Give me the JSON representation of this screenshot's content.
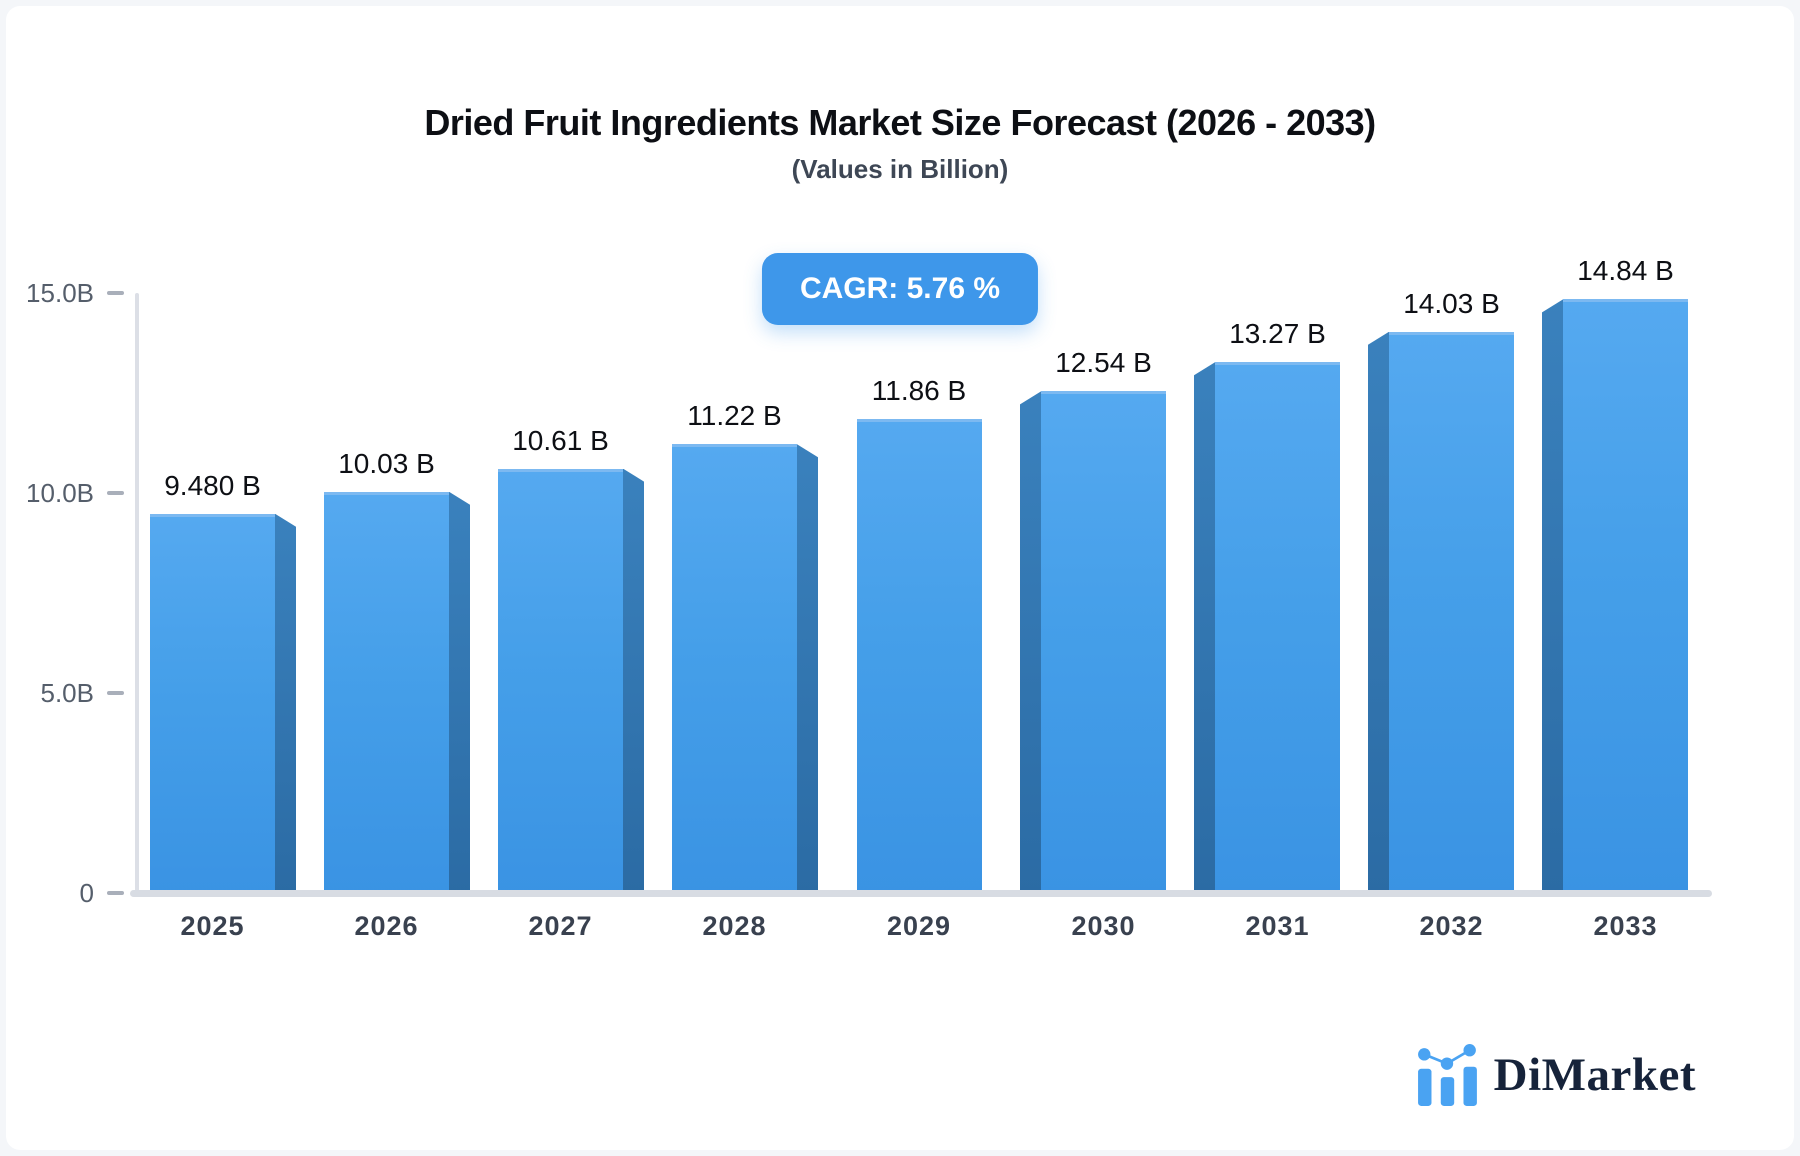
{
  "header": {
    "title": "Dried Fruit Ingredients Market Size Forecast (2026 - 2033)",
    "subtitle": "(Values in Billion)",
    "cagr_badge": "CAGR: 5.76 %"
  },
  "chart_data": {
    "type": "bar",
    "title": "Dried Fruit Ingredients Market Size Forecast (2026 - 2033)",
    "subtitle": "(Values in Billion)",
    "xlabel": "",
    "ylabel": "",
    "unit": "Billion",
    "categories": [
      "2025",
      "2026",
      "2027",
      "2028",
      "2029",
      "2030",
      "2031",
      "2032",
      "2033"
    ],
    "values": [
      9.48,
      10.03,
      10.61,
      11.22,
      11.86,
      12.54,
      13.27,
      14.03,
      14.84
    ],
    "value_labels": [
      "9.480 B",
      "10.03 B",
      "10.61 B",
      "11.22 B",
      "11.86 B",
      "12.54 B",
      "13.27 B",
      "14.03 B",
      "14.84 B"
    ],
    "ylim": [
      0,
      15
    ],
    "yticks": [
      {
        "value": 0,
        "label": "0"
      },
      {
        "value": 5,
        "label": "5.0B"
      },
      {
        "value": 10,
        "label": "10.0B"
      },
      {
        "value": 15,
        "label": "15.0B"
      }
    ],
    "grid": false,
    "legend": null,
    "style": "3d-perspective-columns",
    "annotations": [
      "CAGR: 5.76 %"
    ]
  },
  "colors": {
    "accent": "#3e97ea",
    "bar_face_top": "#55a9f0",
    "bar_face_bottom": "#3a93e3",
    "bar_side": "#2e74b0",
    "axis_line": "#dcdfe6",
    "title_text": "#0d0f14",
    "subtitle_text": "#3e4755",
    "logo_blue": "#4aa3f2",
    "logo_navy": "#16233a"
  },
  "footer": {
    "logo_text": "DiMarket"
  }
}
